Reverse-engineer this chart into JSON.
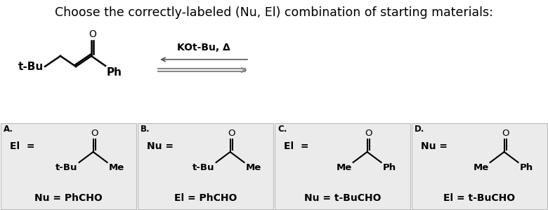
{
  "title": "Choose the correctly-labeled (Nu, El) combination of starting materials:",
  "title_fontsize": 12.5,
  "bg_color": "#ffffff",
  "panel_bg": "#ebebeb",
  "panel_labels": [
    "A.",
    "B.",
    "C.",
    "D."
  ],
  "panel_label_texts": [
    "El  =",
    "Nu =",
    "El  =",
    "Nu ="
  ],
  "bottom_texts": [
    "Nu = PhCHO",
    "El = PhCHO",
    "Nu = t-BuCHO",
    "El = t-BuCHO"
  ],
  "reaction_label": "KOt-Bu, Δ",
  "reaction_left": "t-Bu",
  "reaction_right": "Ph",
  "panel_struct_left": [
    "t-Bu",
    "t-Bu",
    "Me",
    "Me"
  ],
  "panel_struct_right": [
    "Me",
    "Me",
    "Ph",
    "Ph"
  ]
}
